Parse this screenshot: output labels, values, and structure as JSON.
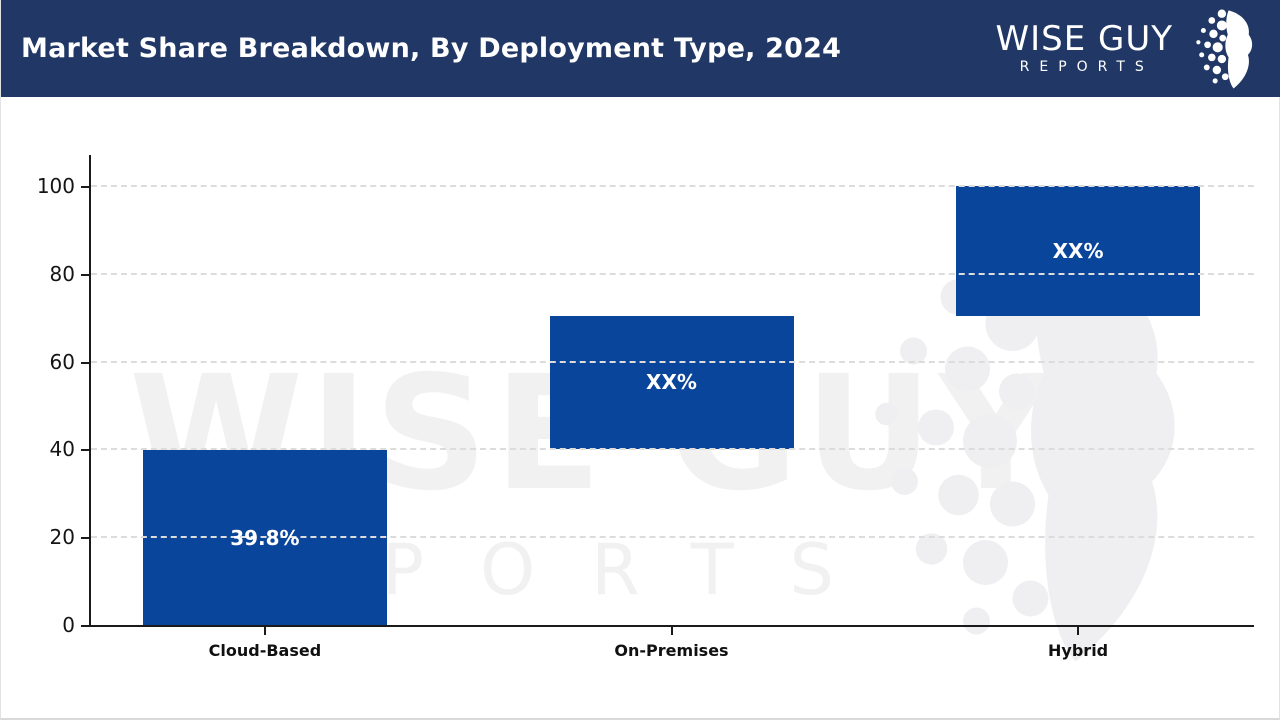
{
  "header": {
    "title": "Market Share Breakdown, By Deployment Type, 2024",
    "logo": {
      "line1": "WISE GUY",
      "line2": "REPORTS"
    }
  },
  "watermark": {
    "line1": "WISE GUY",
    "line2": "REPORTS"
  },
  "colors": {
    "header_bg": "#213866",
    "bar": "#0a459c",
    "bar_label": "#ffffff",
    "grid": "#dcdcdc",
    "axis": "#1a1a1a",
    "watermark": "#f1f1f2"
  },
  "chart_data": {
    "type": "bar",
    "subtype": "floating-waterfall",
    "title": "Market Share Breakdown, By Deployment Type, 2024",
    "categories": [
      "Cloud-Based",
      "On-Premises",
      "Hybrid"
    ],
    "segments": [
      {
        "category": "Cloud-Based",
        "start": 0,
        "end": 39.8,
        "label": "39.8%"
      },
      {
        "category": "On-Premises",
        "start": 40,
        "end": 70.5,
        "label": "XX%"
      },
      {
        "category": "Hybrid",
        "start": 70.5,
        "end": 100,
        "label": "XX%"
      }
    ],
    "yticks": [
      0,
      20,
      40,
      60,
      80,
      100
    ],
    "ylim": [
      0,
      107
    ],
    "grid": "dashed-horizontal",
    "legend": "none",
    "xlabel": "",
    "ylabel": ""
  }
}
